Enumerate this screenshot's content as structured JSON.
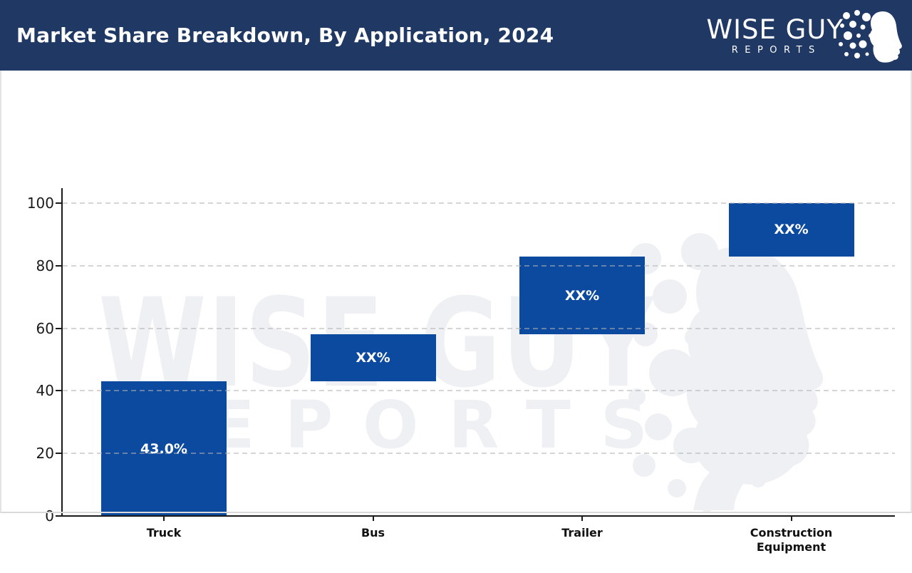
{
  "header": {
    "title": "Market Share Breakdown, By Application, 2024",
    "logo": {
      "line1": "WISE GUY",
      "line2": "REPORTS"
    }
  },
  "watermark": {
    "line1": "WISE GUY",
    "line2": "REPORTS"
  },
  "chart_data": {
    "type": "bar",
    "subtype": "floating-waterfall",
    "title": "Market Share Breakdown, By Application, 2024",
    "categories": [
      "Truck",
      "Bus",
      "Trailer",
      "Construction Equipment"
    ],
    "segments": [
      {
        "label": "Truck",
        "start": 0,
        "end": 43,
        "value_label": "43.0%"
      },
      {
        "label": "Bus",
        "start": 43,
        "end": 58,
        "value_label": "XX%"
      },
      {
        "label": "Trailer",
        "start": 58,
        "end": 83,
        "value_label": "XX%"
      },
      {
        "label": "Construction Equipment",
        "start": 83,
        "end": 100,
        "value_label": "XX%"
      }
    ],
    "ylim": [
      0,
      100
    ],
    "yticks": [
      0,
      20,
      40,
      60,
      80,
      100
    ],
    "grid": "horizontal-dashed, drawn over bars",
    "legend": "none",
    "colors": {
      "bar": "#0c4aa0",
      "bar_label": "#ffffff",
      "header_bg": "#1f3864",
      "header_text": "#ffffff",
      "axis": "#1a1a1a",
      "grid": "#d4d4d4",
      "watermark": "#eef0f3",
      "background": "#ffffff"
    }
  }
}
